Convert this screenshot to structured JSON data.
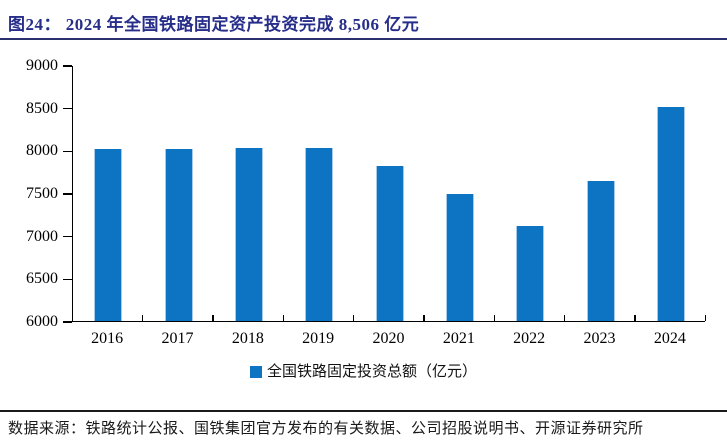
{
  "header": {
    "title": "图24：  2024 年全国铁路固定资产投资完成 8,506 亿元"
  },
  "chart_data": {
    "type": "bar",
    "title": "2024 年全国铁路固定资产投资完成 8,506 亿元",
    "categories": [
      "2016",
      "2017",
      "2018",
      "2019",
      "2020",
      "2021",
      "2022",
      "2023",
      "2024"
    ],
    "series": [
      {
        "name": "全国铁路固定投资总额（亿元）",
        "values": [
          8015,
          8010,
          8028,
          8029,
          7819,
          7489,
          7109,
          7645,
          8506
        ]
      }
    ],
    "xlabel": "",
    "ylabel": "",
    "ylim": [
      6000,
      9000
    ],
    "yticks": [
      6000,
      6500,
      7000,
      7500,
      8000,
      8500,
      9000
    ],
    "grid": false,
    "legend_position": "bottom-center",
    "bar_color": "#0c74c2"
  },
  "legend": {
    "label": "全国铁路固定投资总额（亿元）"
  },
  "footer": {
    "source": "数据来源：铁路统计公报、国铁集团官方发布的有关数据、公司招股说明书、开源证券研究所"
  },
  "colors": {
    "title": "#272e8a",
    "bar": "#0c74c2",
    "axis": "#000000"
  }
}
